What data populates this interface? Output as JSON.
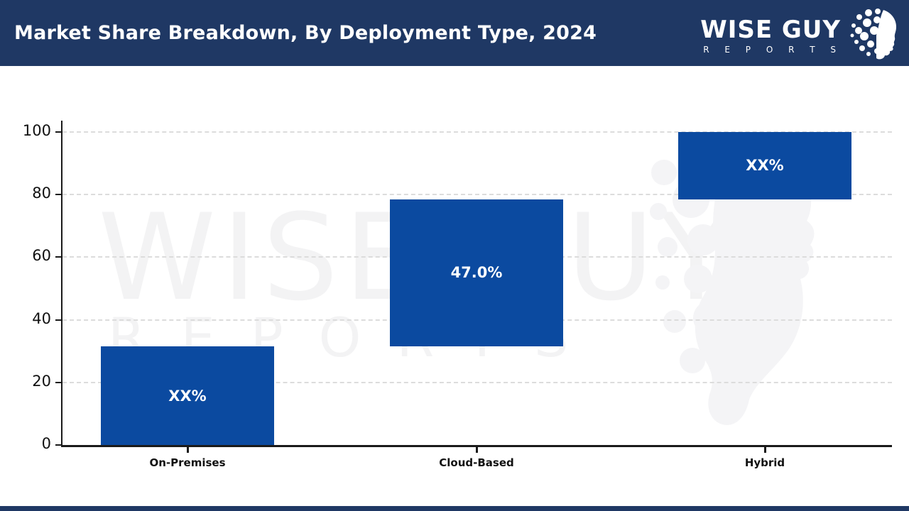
{
  "header": {
    "title": "Market Share Breakdown, By Deployment Type, 2024",
    "bg_color": "#1F3864",
    "logo": {
      "name": "WISE GUY",
      "sub": "R E P O R T S"
    }
  },
  "watermark": {
    "line1": "WISE GUY",
    "line2": "REPORTS"
  },
  "footer": {
    "bg_color": "#1F3864"
  },
  "chart_data": {
    "type": "bar",
    "variant": "floating-segment-waterfall",
    "title": "Market Share Breakdown, By Deployment Type, 2024",
    "categories": [
      "On-Premises",
      "Cloud-Based",
      "Hybrid"
    ],
    "segments": [
      {
        "category": "On-Premises",
        "start": 0,
        "end": 31.5,
        "label": "XX%"
      },
      {
        "category": "Cloud-Based",
        "start": 31.5,
        "end": 78.5,
        "label": "47.0%"
      },
      {
        "category": "Hybrid",
        "start": 78.5,
        "end": 100,
        "label": "XX%"
      }
    ],
    "xlabel": "",
    "ylabel": "",
    "ylim": [
      0,
      100
    ],
    "yticks": [
      0,
      20,
      40,
      60,
      80,
      100
    ],
    "grid": "horizontal-dashed",
    "legend": "none",
    "bar_color": "#0B4AA0",
    "bar_label_color": "#FFFFFF",
    "axis_color": "#1a1a1a",
    "gridline_color": "#dcdcdc"
  }
}
